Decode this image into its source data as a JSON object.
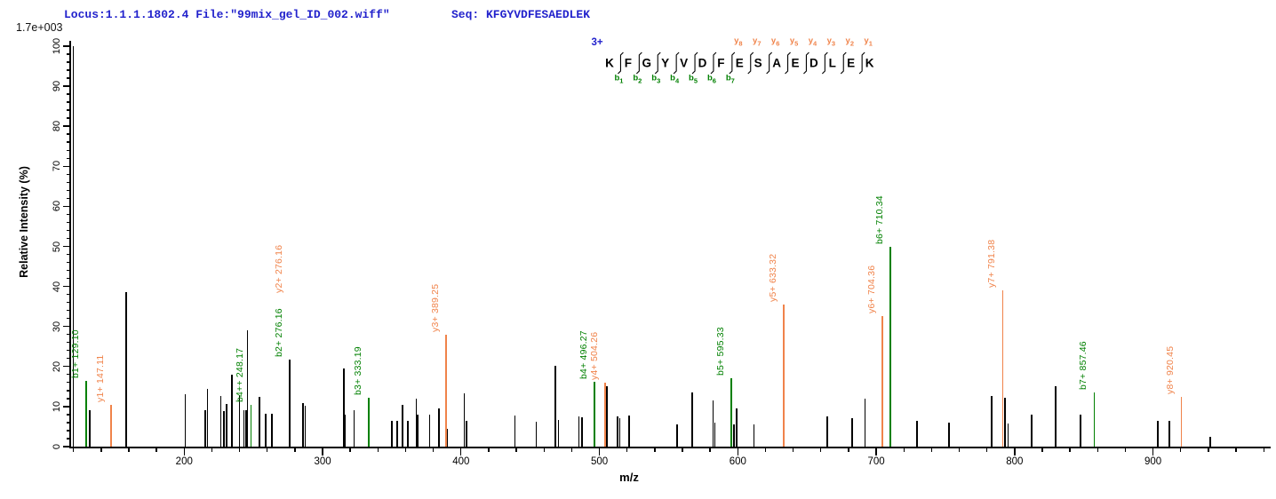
{
  "header": {
    "locus_file": "Locus:1.1.1.1802.4 File:\"99mix_gel_ID_002.wiff\"",
    "seq": "Seq: KFGYVDFESAEDLEK"
  },
  "colors": {
    "header_blue": "#2222cc",
    "b_ion_green": "#008000",
    "y_ion_orange": "#f0834a",
    "peak_black": "#000000"
  },
  "chart_data": {
    "type": "bar",
    "subtype": "MS/MS centroid mass spectrum (peptide fragmentation)",
    "title": "",
    "xlabel": "m/z",
    "ylabel": "Relative  Intensity (%)",
    "max_intensity_label": "1.7e+003",
    "xlim": [
      117,
      985
    ],
    "ylim": [
      0,
      100
    ],
    "xticks": [
      200,
      300,
      400,
      500,
      600,
      700,
      800,
      900
    ],
    "yticks": [
      0,
      10,
      20,
      30,
      40,
      50,
      60,
      70,
      80,
      90,
      100
    ],
    "x_minor_step": 20,
    "y_minor_step": 2,
    "grid": false,
    "precursor_charge": "3+",
    "peptide": [
      "K",
      "F",
      "G",
      "Y",
      "V",
      "D",
      "F",
      "E",
      "S",
      "A",
      "E",
      "D",
      "L",
      "E",
      "K"
    ],
    "b_ion_ladder": [
      "b1",
      "b2",
      "b3",
      "b4",
      "b5",
      "b6",
      "b7"
    ],
    "y_ion_ladder": [
      "y8",
      "y7",
      "y6",
      "y5",
      "y4",
      "y3",
      "y2",
      "y1"
    ],
    "annotated_peaks": [
      {
        "mz": 129.1,
        "intensity": 16.5,
        "color": "green",
        "labels": [
          {
            "text": "b1+ 129.10",
            "color": "green"
          }
        ]
      },
      {
        "mz": 147.11,
        "intensity": 10.5,
        "color": "orange",
        "labels": [
          {
            "text": "y1+ 147.11",
            "color": "orange"
          }
        ]
      },
      {
        "mz": 248.17,
        "intensity": 10.5,
        "color": "green",
        "labels": [
          {
            "text": "b4++ 248.17",
            "color": "green"
          }
        ]
      },
      {
        "mz": 276.16,
        "intensity": 21.7,
        "color": "black",
        "labels": [
          {
            "text": "b2+ 276.16",
            "color": "green"
          },
          {
            "text": "y2+ 276.16",
            "color": "orange"
          }
        ]
      },
      {
        "mz": 333.19,
        "intensity": 12.2,
        "color": "green",
        "labels": [
          {
            "text": "b3+ 333.19",
            "color": "green"
          }
        ]
      },
      {
        "mz": 389.25,
        "intensity": 28.0,
        "color": "orange",
        "labels": [
          {
            "text": "y3+ 389.25",
            "color": "orange"
          }
        ]
      },
      {
        "mz": 496.27,
        "intensity": 16.2,
        "color": "green",
        "labels": [
          {
            "text": "b4+ 496.27",
            "color": "green"
          }
        ]
      },
      {
        "mz": 504.26,
        "intensity": 16.0,
        "color": "orange",
        "labels": [
          {
            "text": "y4+ 504.26",
            "color": "orange"
          }
        ]
      },
      {
        "mz": 595.33,
        "intensity": 17.0,
        "color": "green",
        "labels": [
          {
            "text": "b5+ 595.33",
            "color": "green"
          }
        ]
      },
      {
        "mz": 633.32,
        "intensity": 35.5,
        "color": "orange",
        "labels": [
          {
            "text": "y5+ 633.32",
            "color": "orange"
          }
        ]
      },
      {
        "mz": 704.36,
        "intensity": 32.5,
        "color": "orange",
        "labels": [
          {
            "text": "y6+ 704.36",
            "color": "orange"
          }
        ]
      },
      {
        "mz": 710.34,
        "intensity": 50.0,
        "color": "green",
        "labels": [
          {
            "text": "b6+ 710.34",
            "color": "green"
          }
        ]
      },
      {
        "mz": 791.38,
        "intensity": 39.0,
        "color": "orange",
        "labels": [
          {
            "text": "y7+ 791.38",
            "color": "orange"
          }
        ]
      },
      {
        "mz": 857.46,
        "intensity": 13.5,
        "color": "green",
        "labels": [
          {
            "text": "b7+ 857.46",
            "color": "green"
          }
        ]
      },
      {
        "mz": 920.45,
        "intensity": 12.5,
        "color": "orange",
        "labels": [
          {
            "text": "y8+ 920.45",
            "color": "orange"
          }
        ]
      }
    ],
    "unannotated_peaks": [
      [
        120.0,
        100
      ],
      [
        131.7,
        9
      ],
      [
        158.0,
        38.5
      ],
      [
        200.7,
        13
      ],
      [
        215.1,
        9.2
      ],
      [
        216.8,
        14.5
      ],
      [
        226.4,
        12.7
      ],
      [
        228.6,
        8.9
      ],
      [
        230.7,
        10.7
      ],
      [
        234.6,
        18
      ],
      [
        239.9,
        12.9
      ],
      [
        243.1,
        9
      ],
      [
        244.6,
        9
      ],
      [
        245.7,
        29
      ],
      [
        254.3,
        12.5
      ],
      [
        259.0,
        8.3
      ],
      [
        263.3,
        8.3
      ],
      [
        285.7,
        10.9
      ],
      [
        287.4,
        10.2
      ],
      [
        315.2,
        19.6
      ],
      [
        316.4,
        7.9
      ],
      [
        322.7,
        9.2
      ],
      [
        350.1,
        6.5
      ],
      [
        354.0,
        6.5
      ],
      [
        357.8,
        10.5
      ],
      [
        361.7,
        6.5
      ],
      [
        367.6,
        12
      ],
      [
        368.8,
        8
      ],
      [
        377.3,
        8
      ],
      [
        384.1,
        9.5
      ],
      [
        389.9,
        4.5
      ],
      [
        402.5,
        13.2
      ],
      [
        404.0,
        6.5
      ],
      [
        438.9,
        7.7
      ],
      [
        454.3,
        6.2
      ],
      [
        468.2,
        20.2
      ],
      [
        470.3,
        6.7
      ],
      [
        485.3,
        7.5
      ],
      [
        487.5,
        7.3
      ],
      [
        505.6,
        15
      ],
      [
        513.1,
        7.5
      ],
      [
        514.6,
        7
      ],
      [
        521.6,
        7.8
      ],
      [
        556.3,
        5.5
      ],
      [
        567.2,
        13.5
      ],
      [
        582.2,
        11.5
      ],
      [
        583.4,
        6
      ],
      [
        597.2,
        5.5
      ],
      [
        599.1,
        9.5
      ],
      [
        611.8,
        5.5
      ],
      [
        664.8,
        7.5
      ],
      [
        682.6,
        7
      ],
      [
        691.8,
        12
      ],
      [
        729.5,
        6.5
      ],
      [
        752.6,
        6
      ],
      [
        783.4,
        12.7
      ],
      [
        793.0,
        12.3
      ],
      [
        795.4,
        5.8
      ],
      [
        812.3,
        8
      ],
      [
        829.8,
        15
      ],
      [
        847.6,
        8
      ],
      [
        903.4,
        6.5
      ],
      [
        911.8,
        6.5
      ],
      [
        941.2,
        2.5
      ]
    ]
  }
}
